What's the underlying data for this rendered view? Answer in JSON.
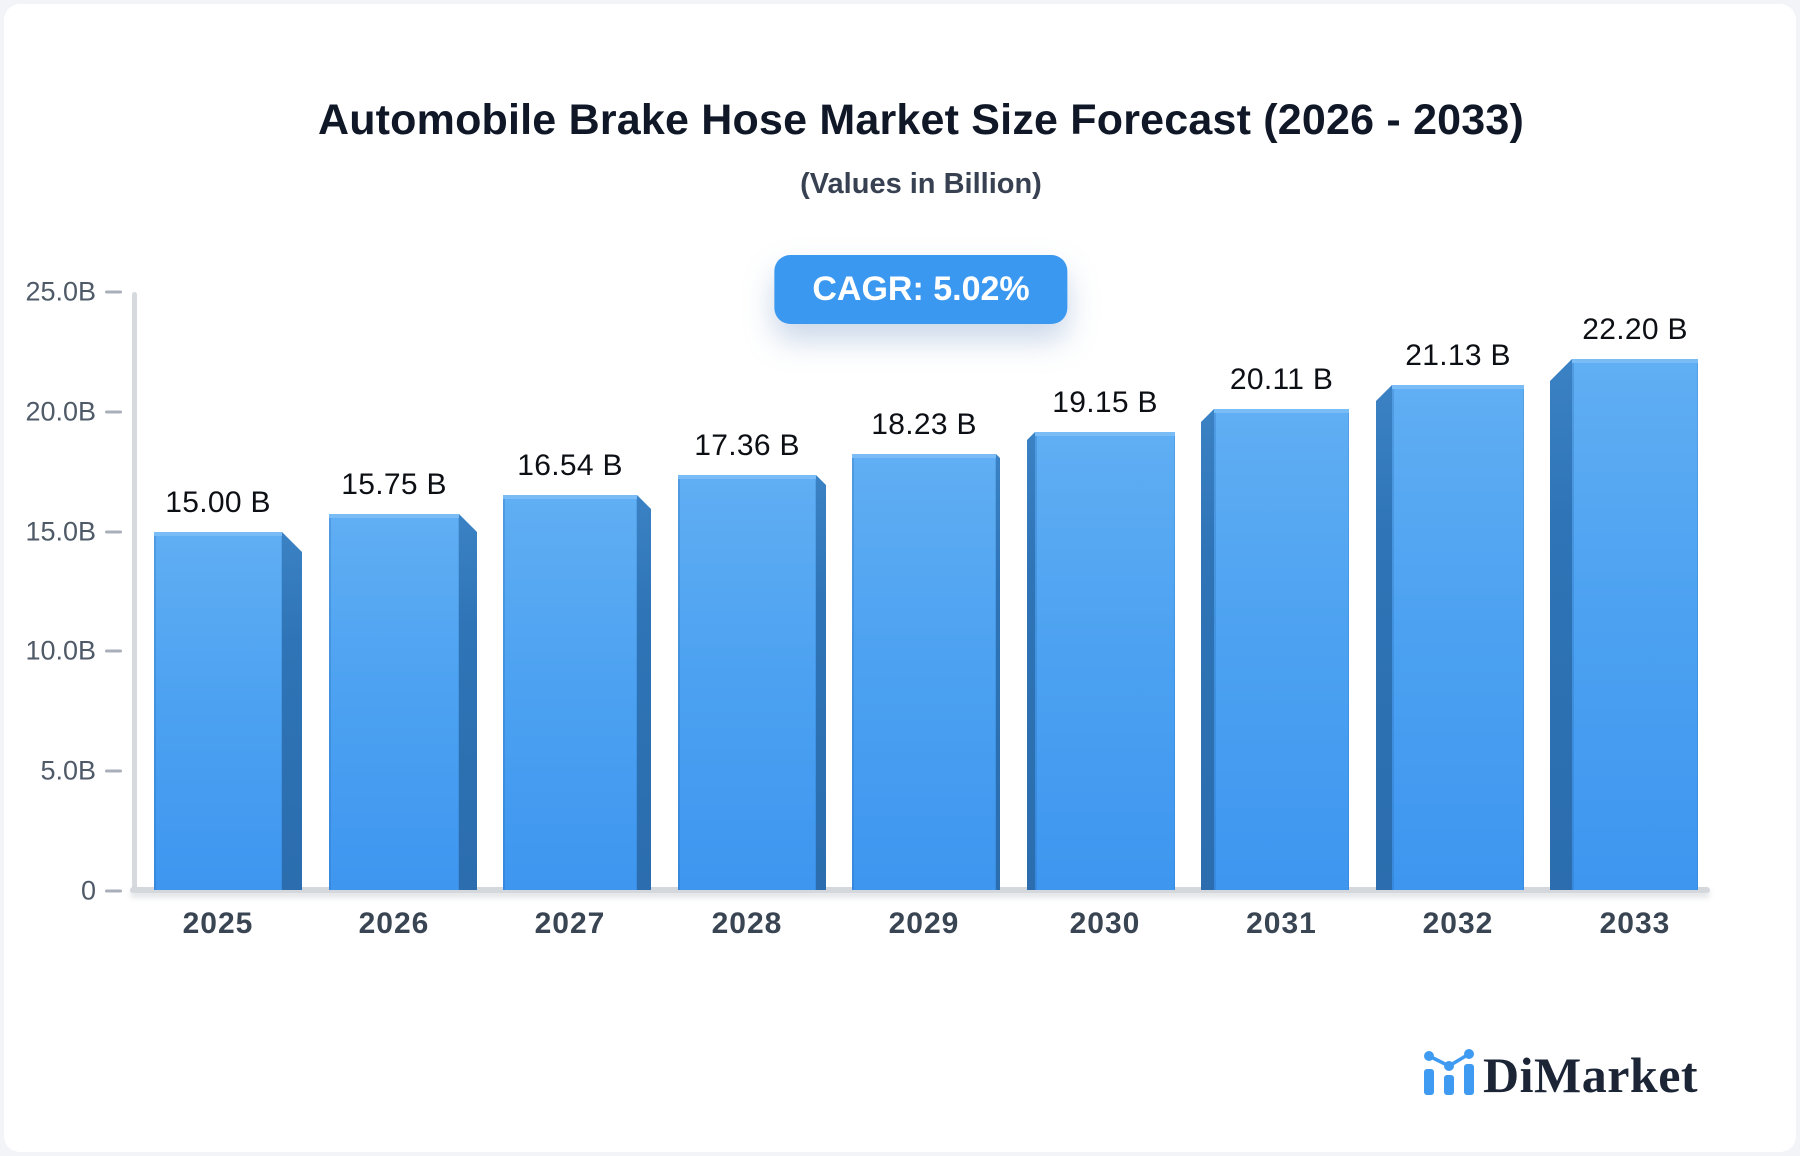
{
  "header": {
    "title": "Automobile Brake Hose Market Size Forecast (2026 - 2033)",
    "subtitle": "(Values in Billion)"
  },
  "badge": {
    "label": "CAGR: 5.02%",
    "background": "#3b98f0",
    "text_color": "#ffffff"
  },
  "chart_data": {
    "type": "bar",
    "title": "Automobile Brake Hose Market Size Forecast (2026 - 2033)",
    "subtitle": "(Values in Billion)",
    "categories": [
      "2025",
      "2026",
      "2027",
      "2028",
      "2029",
      "2030",
      "2031",
      "2032",
      "2033"
    ],
    "values": [
      15.0,
      15.75,
      16.54,
      17.36,
      18.23,
      19.15,
      20.11,
      21.13,
      22.2
    ],
    "value_labels": [
      "15.00 B",
      "15.75 B",
      "16.54 B",
      "17.36 B",
      "18.23 B",
      "19.15 B",
      "20.11 B",
      "21.13 B",
      "22.20 B"
    ],
    "yticks": [
      {
        "label": "25.0B",
        "value": 25
      },
      {
        "label": "20.0B",
        "value": 20
      },
      {
        "label": "15.0B",
        "value": 15
      },
      {
        "label": "10.0B",
        "value": 10
      },
      {
        "label": "5.0B",
        "value": 5
      },
      {
        "label": "0",
        "value": 0
      }
    ],
    "ylim": [
      0,
      25
    ],
    "xlabel": "",
    "ylabel": "",
    "grid": false,
    "legend": false,
    "style": "pseudo-3d bars, perspective vanishing at center",
    "bar_color_top": "#60aef3",
    "bar_color_bottom": "#3e96ef",
    "bar_side_color": "#2e74b6",
    "axis_color": "#d6d9de",
    "tick_text_color": "#4f5a68"
  },
  "footer": {
    "brand": "DiMarket",
    "brand_color": "#1b2536",
    "logo_icon": "mini-bar-line-chart-icon",
    "logo_blue": "#3f9bf1"
  }
}
